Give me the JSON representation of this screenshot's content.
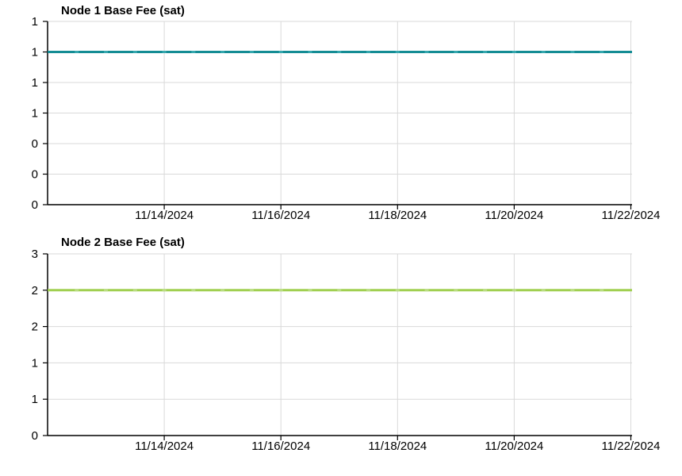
{
  "page": {
    "background_color": "#ffffff",
    "text_color": "#000000",
    "gridline_color": "#d9d9d9",
    "axis_color": "#000000"
  },
  "chart_data": [
    {
      "type": "line",
      "title": "Node 1 Base Fee (sat)",
      "xlabel": "",
      "ylabel": "",
      "x_start": "11/12/2024",
      "x_end": "11/22/2024",
      "x_total_days": 10,
      "x_tick_positions_days": [
        2,
        4,
        6,
        8,
        10
      ],
      "x_tick_labels": [
        "11/14/2024",
        "11/16/2024",
        "11/18/2024",
        "11/20/2024",
        "11/22/2024"
      ],
      "ylim": [
        0,
        1.2
      ],
      "y_ticks": [
        0,
        0.2,
        0.4,
        0.6,
        0.8,
        1.0,
        1.2
      ],
      "y_tick_labels": [
        "0",
        "0",
        "0",
        "1",
        "1",
        "1",
        "1"
      ],
      "grid": true,
      "legend": false,
      "series": [
        {
          "name": "Node 1 Base Fee (sat)",
          "constant_value": 1,
          "point_interval_hours": 12,
          "color": "#148c94",
          "marker_color": "#35a7ae"
        }
      ]
    },
    {
      "type": "line",
      "title": "Node 2 Base Fee (sat)",
      "xlabel": "",
      "ylabel": "",
      "x_start": "11/12/2024",
      "x_end": "11/22/2024",
      "x_total_days": 10,
      "x_tick_positions_days": [
        2,
        4,
        6,
        8,
        10
      ],
      "x_tick_labels": [
        "11/14/2024",
        "11/16/2024",
        "11/18/2024",
        "11/20/2024",
        "11/22/2024"
      ],
      "ylim": [
        0,
        2.5
      ],
      "y_ticks": [
        0,
        0.5,
        1.0,
        1.5,
        2.0,
        2.5
      ],
      "y_tick_labels": [
        "0",
        "1",
        "1",
        "2",
        "2",
        "3"
      ],
      "grid": true,
      "legend": false,
      "series": [
        {
          "name": "Node 2 Base Fee (sat)",
          "constant_value": 2,
          "point_interval_hours": 12,
          "color": "#a0cf50",
          "marker_color": "#b9dc80"
        }
      ]
    }
  ]
}
